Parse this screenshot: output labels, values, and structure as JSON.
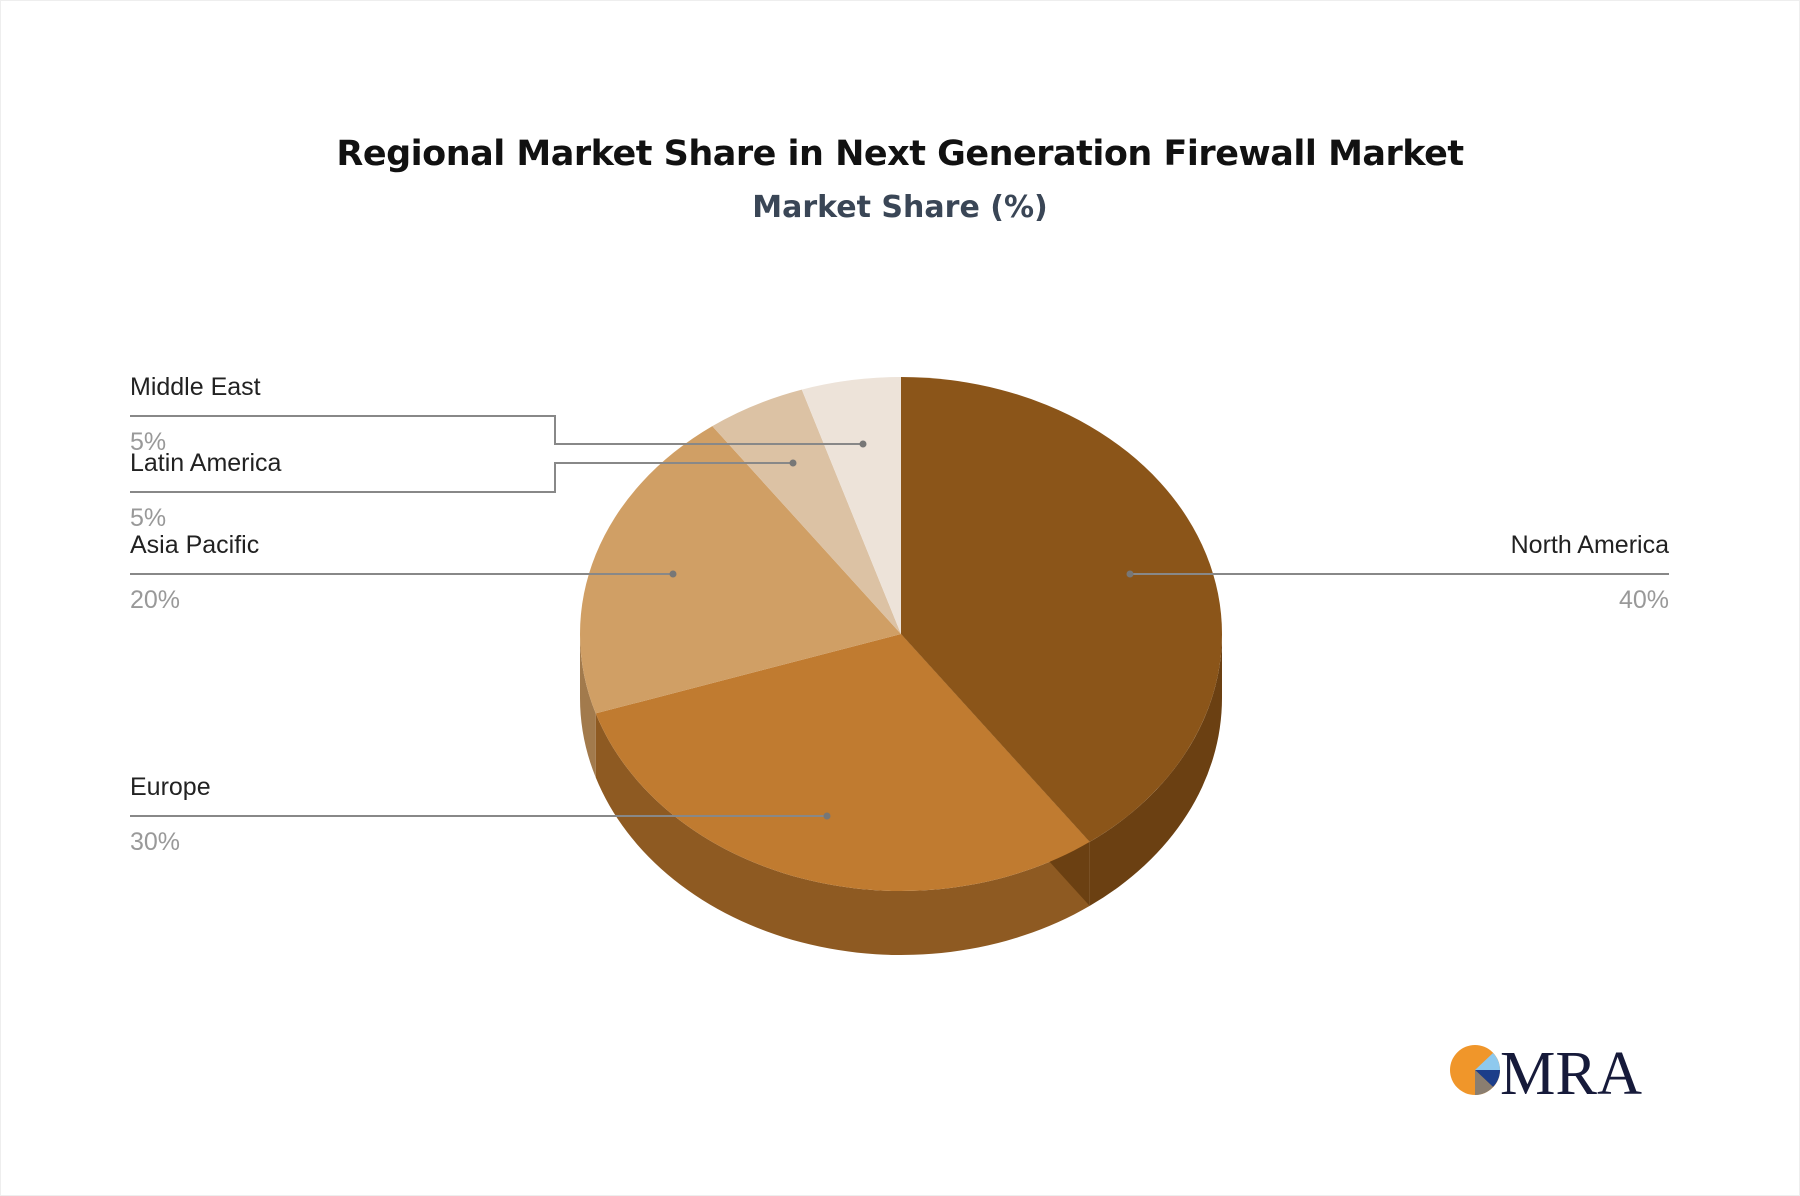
{
  "chart_data": {
    "type": "pie",
    "title": "Regional Market Share in Next Generation Firewall Market",
    "subtitle": "Market Share (%)",
    "categories": [
      "North America",
      "Europe",
      "Asia Pacific",
      "Latin America",
      "Middle East"
    ],
    "values": [
      40,
      30,
      20,
      5,
      5
    ],
    "labels": [
      "40%",
      "30%",
      "20%",
      "5%",
      "5%"
    ],
    "colors": [
      "#8B5519",
      "#C07B30",
      "#D09F65",
      "#DCC2A4",
      "#EDE3D9"
    ],
    "side_colors": [
      "#6B4012",
      "#8E5A22",
      "#A27A4C",
      "#B09A80",
      "#C0B5AA"
    ],
    "style": "3d-pie"
  },
  "logo": {
    "text": "MRA"
  }
}
